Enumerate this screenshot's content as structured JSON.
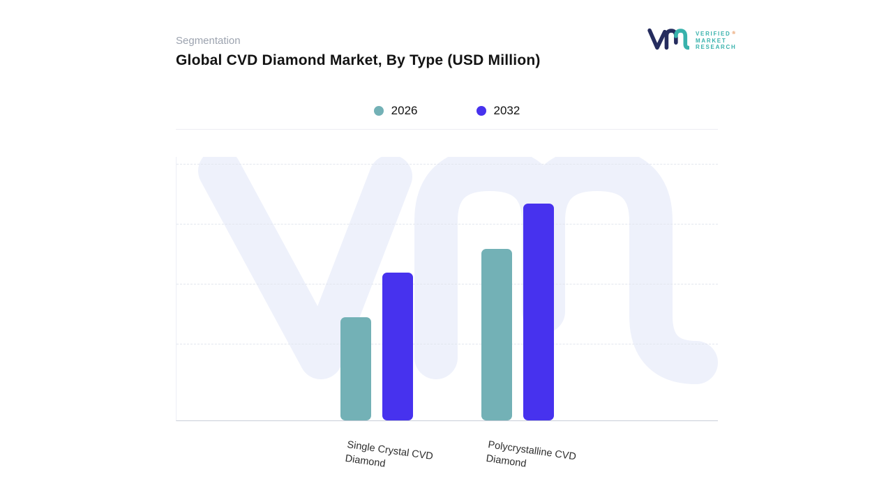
{
  "page": {
    "eyebrow": "Segmentation",
    "title": "Global CVD Diamond Market, By Type (USD Million)"
  },
  "logo": {
    "line1": "VERIFIED",
    "line2": "MARKET",
    "line3": "RESEARCH",
    "registered": "®"
  },
  "chart_data": {
    "type": "bar",
    "title": "Global CVD Diamond Market, By Type (USD Million)",
    "categories": [
      "Single Crystal CVD Diamond",
      "Polycrystalline CVD Diamond"
    ],
    "series": [
      {
        "name": "2026",
        "color": "#73b1b6",
        "values": [
          39,
          65
        ]
      },
      {
        "name": "2032",
        "color": "#4732ee",
        "values": [
          56,
          82
        ]
      }
    ],
    "xlabel": "",
    "ylabel": "",
    "ylim": [
      0,
      100
    ],
    "axis_value_labels_visible": false,
    "grid": "horizontal-dashed",
    "legend_position": "top-center",
    "watermark": "Vm"
  },
  "colors": {
    "teal_2026": "#73b1b6",
    "indigo_2032": "#4732ee",
    "watermark": "#eef1fb",
    "gridline": "#e2e6ee",
    "axis_line": "#c9ced8",
    "eyebrow_text": "#9ca3af",
    "title_text": "#131313",
    "logo_navy": "#252c5e",
    "logo_teal": "#38b2ac"
  }
}
